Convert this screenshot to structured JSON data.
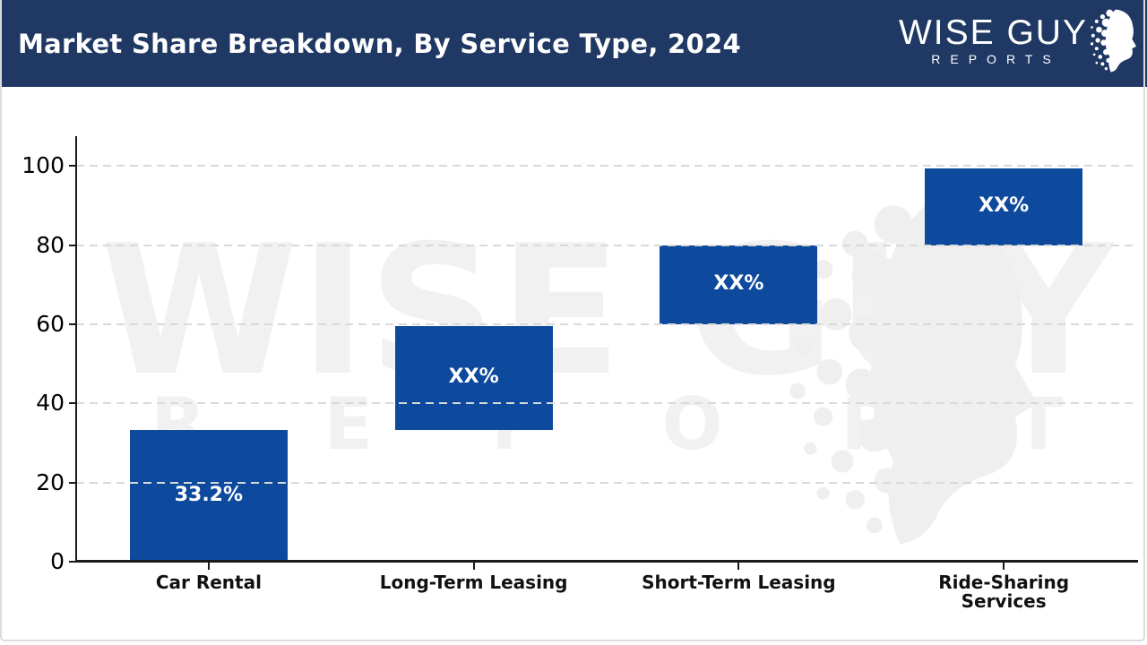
{
  "header": {
    "title": "Market Share Breakdown, By Service Type, 2024",
    "logo": {
      "line1": "WISE GUY",
      "line2": "REPORTS"
    }
  },
  "watermark": {
    "line1": "WISE GUY",
    "line2": "R E P O R T S"
  },
  "chart_data": {
    "type": "bar",
    "subtype": "waterfall",
    "title": "Market Share Breakdown, By Service Type, 2024",
    "categories": [
      "Car Rental",
      "Long-Term Leasing",
      "Short-Term Leasing",
      "Ride-Sharing Services"
    ],
    "xtick_lines": [
      [
        "Car Rental"
      ],
      [
        "Long-Term Leasing"
      ],
      [
        "Short-Term Leasing"
      ],
      [
        "Ride-Sharing",
        "Services"
      ]
    ],
    "series": [
      {
        "name": "Market Share (%)",
        "segments": [
          {
            "start": 0,
            "end": 33.2
          },
          {
            "start": 33.2,
            "end": 59.5
          },
          {
            "start": 60,
            "end": 80
          },
          {
            "start": 80,
            "end": 99.5
          }
        ],
        "labels": [
          "33.2%",
          "XX%",
          "XX%",
          "XX%"
        ]
      }
    ],
    "ylim": [
      0,
      108
    ],
    "yticks": [
      0,
      20,
      40,
      60,
      80,
      100
    ],
    "grid": "horizontal-dashed",
    "legend": "none",
    "bar_color": "#0d4a9e",
    "bar_label_color": "#ffffff"
  },
  "colors": {
    "header_bg": "#1f3864",
    "bar": "#0d4a9e",
    "grid": "#d9d9d9",
    "spine": "#1a1a1a",
    "watermark": "#f1f1f1",
    "card_border": "#dcdcdc"
  }
}
